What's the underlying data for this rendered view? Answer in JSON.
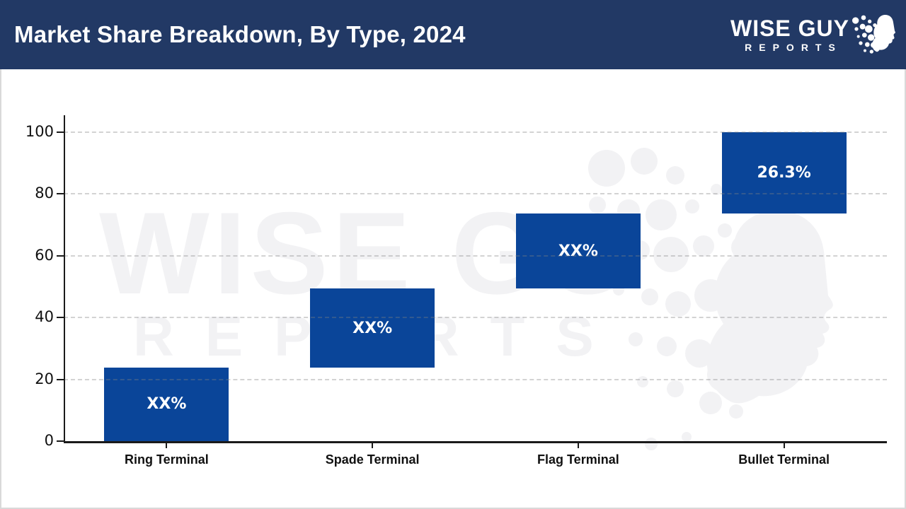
{
  "header": {
    "title": "Market Share Breakdown, By Type, 2024",
    "logo": {
      "line1": "WISE GUY",
      "line2": "REPORTS"
    }
  },
  "watermark": {
    "line1": "WISE GU",
    "line2": "REPORTS"
  },
  "chart_data": {
    "type": "bar",
    "subtype": "floating-waterfall",
    "title": "Market Share Breakdown, By Type, 2024",
    "categories": [
      "Ring Terminal",
      "Spade Terminal",
      "Flag Terminal",
      "Bullet Terminal"
    ],
    "segments": [
      {
        "category": "Ring Terminal",
        "start": 0,
        "end": 23.8,
        "label": "XX%"
      },
      {
        "category": "Spade Terminal",
        "start": 23.8,
        "end": 49.4,
        "label": "XX%"
      },
      {
        "category": "Flag Terminal",
        "start": 49.4,
        "end": 73.7,
        "label": "XX%"
      },
      {
        "category": "Bullet Terminal",
        "start": 73.7,
        "end": 100,
        "label": "26.3%"
      }
    ],
    "ylim": [
      0,
      100
    ],
    "yticks": [
      0,
      20,
      40,
      60,
      80,
      100
    ],
    "grid": "dashed-horizontal",
    "legend": "none"
  },
  "colors": {
    "header_bg": "#223965",
    "header_text": "#ffffff",
    "bar": "#0a4599",
    "bar_label": "#ffffff",
    "axis": "#1a1a1a",
    "grid": "#d9d9d9",
    "watermark": "#f2f2f4",
    "border": "#d9d9d9"
  }
}
